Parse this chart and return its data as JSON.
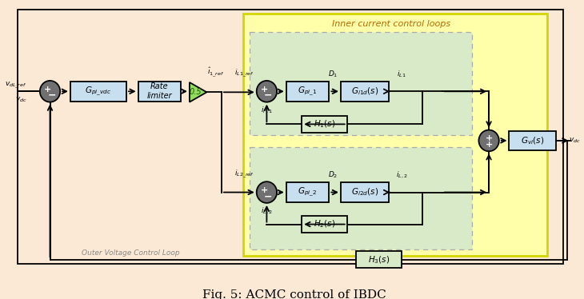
{
  "bg_color": "#fce9d5",
  "fig_title": "Fig. 5: ACMC control of IBDC",
  "inner_yellow_bg": "#ffffaa",
  "inner_yellow_edge": "#d4d400",
  "inner_green_bg": "#d8eac8",
  "inner_green_edge": "#aaaaaa",
  "box_fill": "#c8dff0",
  "box_edge": "#000000",
  "sumjunc_fill": "#707070",
  "triangle_fill": "#90dd60",
  "h_box_fill": "#d8eac8",
  "h3_box_fill": "#d8eac8",
  "inner_label": "Inner current control loops",
  "outer_label": "Outer Voltage Control Loop",
  "lw": 1.3
}
